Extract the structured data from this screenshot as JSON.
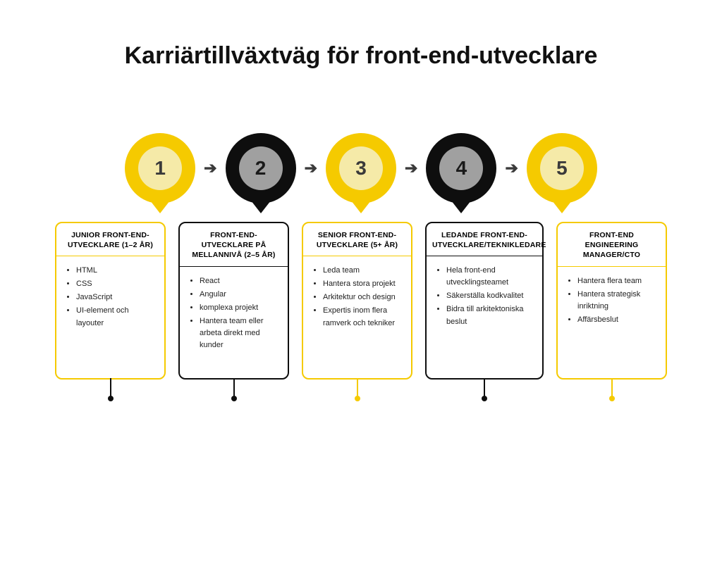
{
  "title": "Karriärtillväxtväg för front-end-utvecklare",
  "colors": {
    "yellow": "#f5ca00",
    "yellow_inner": "#f5eaa8",
    "black": "#0e0e0e",
    "gray_inner": "#a0a0a0",
    "arrow": "#3a3a3a",
    "text": "#1a1a1a"
  },
  "steps": [
    {
      "number": "1",
      "pin_outer": "#f5ca00",
      "pin_inner": "#f5eaa8",
      "pin_text_color": "#3a3a3a",
      "card_border": "#f5ca00",
      "stem_color": "#0e0e0e",
      "title": "JUNIOR FRONT-END-UTVECKLARE (1–2 ÅR)",
      "bullets": [
        "HTML",
        "CSS",
        "JavaScript",
        "UI-element och layouter"
      ]
    },
    {
      "number": "2",
      "pin_outer": "#0e0e0e",
      "pin_inner": "#a0a0a0",
      "pin_text_color": "#1a1a1a",
      "card_border": "#0e0e0e",
      "stem_color": "#0e0e0e",
      "title": "FRONT-END-UTVECKLARE PÅ MELLANNIVÅ (2–5 ÅR)",
      "bullets": [
        "React",
        "Angular",
        "komplexa projekt",
        "Hantera team eller arbeta direkt med kunder"
      ]
    },
    {
      "number": "3",
      "pin_outer": "#f5ca00",
      "pin_inner": "#f5eaa8",
      "pin_text_color": "#3a3a3a",
      "card_border": "#f5ca00",
      "stem_color": "#f5ca00",
      "title": "SENIOR FRONT-END-UTVECKLARE (5+ ÅR)",
      "bullets": [
        "Leda team",
        "Hantera stora projekt",
        "Arkitektur och design",
        "Expertis inom flera ramverk och tekniker"
      ]
    },
    {
      "number": "4",
      "pin_outer": "#0e0e0e",
      "pin_inner": "#a0a0a0",
      "pin_text_color": "#1a1a1a",
      "card_border": "#0e0e0e",
      "stem_color": "#0e0e0e",
      "title": "LEDANDE FRONT-END-UTVECKLARE/TEKNIKLEDARE",
      "bullets": [
        "Hela front-end utvecklingsteamet",
        "Säkerställa kodkvalitet",
        "Bidra till arkitektoniska beslut"
      ]
    },
    {
      "number": "5",
      "pin_outer": "#f5ca00",
      "pin_inner": "#f5eaa8",
      "pin_text_color": "#3a3a3a",
      "card_border": "#f5ca00",
      "stem_color": "#f5ca00",
      "title": "FRONT-END ENGINEERING MANAGER/CTO",
      "bullets": [
        "Hantera flera team",
        "Hantera strategisk inriktning",
        "Affärsbeslut"
      ]
    }
  ],
  "arrow_glyph": "➔"
}
